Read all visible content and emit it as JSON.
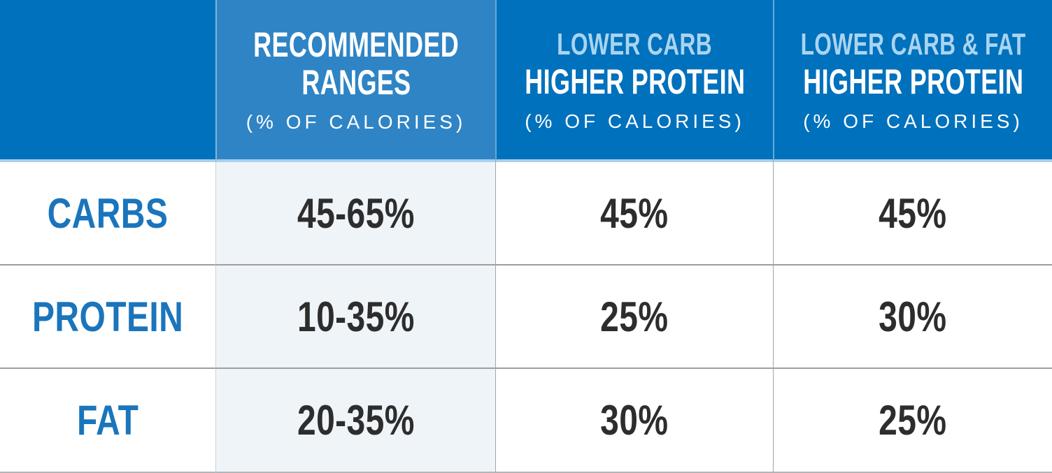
{
  "title": "Macronutrient distribution comparison table",
  "colors": {
    "header_bg": "#0071bc",
    "header_highlight_bg": "#2f84c5",
    "highlight_column_bg": "#eff4f9",
    "accent_text": "#a9d4f0",
    "header_text": "#ffffff",
    "row_label_blue": "#1a75bc",
    "value_text": "#2d2d2d",
    "divider_gray": "#9e9e9e",
    "header_underline": "#abcfe9"
  },
  "header": {
    "col_recommended": {
      "title_line1": "RECOMMENDED",
      "title_line2": "RANGES",
      "subtitle": "(% OF CALORIES)"
    },
    "col_lower_carb": {
      "accent": "LOWER CARB",
      "title": "HIGHER PROTEIN",
      "subtitle": "(% OF CALORIES)"
    },
    "col_lower_carb_fat": {
      "accent": "LOWER CARB & FAT",
      "title": "HIGHER PROTEIN",
      "subtitle": "(% OF CALORIES)"
    }
  },
  "rows": [
    {
      "label": "CARBS",
      "recommended": "45-65%",
      "lower_carb": "45%",
      "lower_carb_fat": "45%"
    },
    {
      "label": "PROTEIN",
      "recommended": "10-35%",
      "lower_carb": "25%",
      "lower_carb_fat": "30%"
    },
    {
      "label": "FAT",
      "recommended": "20-35%",
      "lower_carb": "30%",
      "lower_carb_fat": "25%"
    }
  ],
  "chart_data": {
    "type": "table",
    "columns": [
      "",
      "RECOMMENDED RANGES (% OF CALORIES)",
      "LOWER CARB HIGHER PROTEIN (% OF CALORIES)",
      "LOWER CARB & FAT HIGHER PROTEIN (% OF CALORIES)"
    ],
    "rows": [
      [
        "CARBS",
        "45-65%",
        "45%",
        "45%"
      ],
      [
        "PROTEIN",
        "10-35%",
        "25%",
        "30%"
      ],
      [
        "FAT",
        "20-35%",
        "30%",
        "25%"
      ]
    ]
  }
}
